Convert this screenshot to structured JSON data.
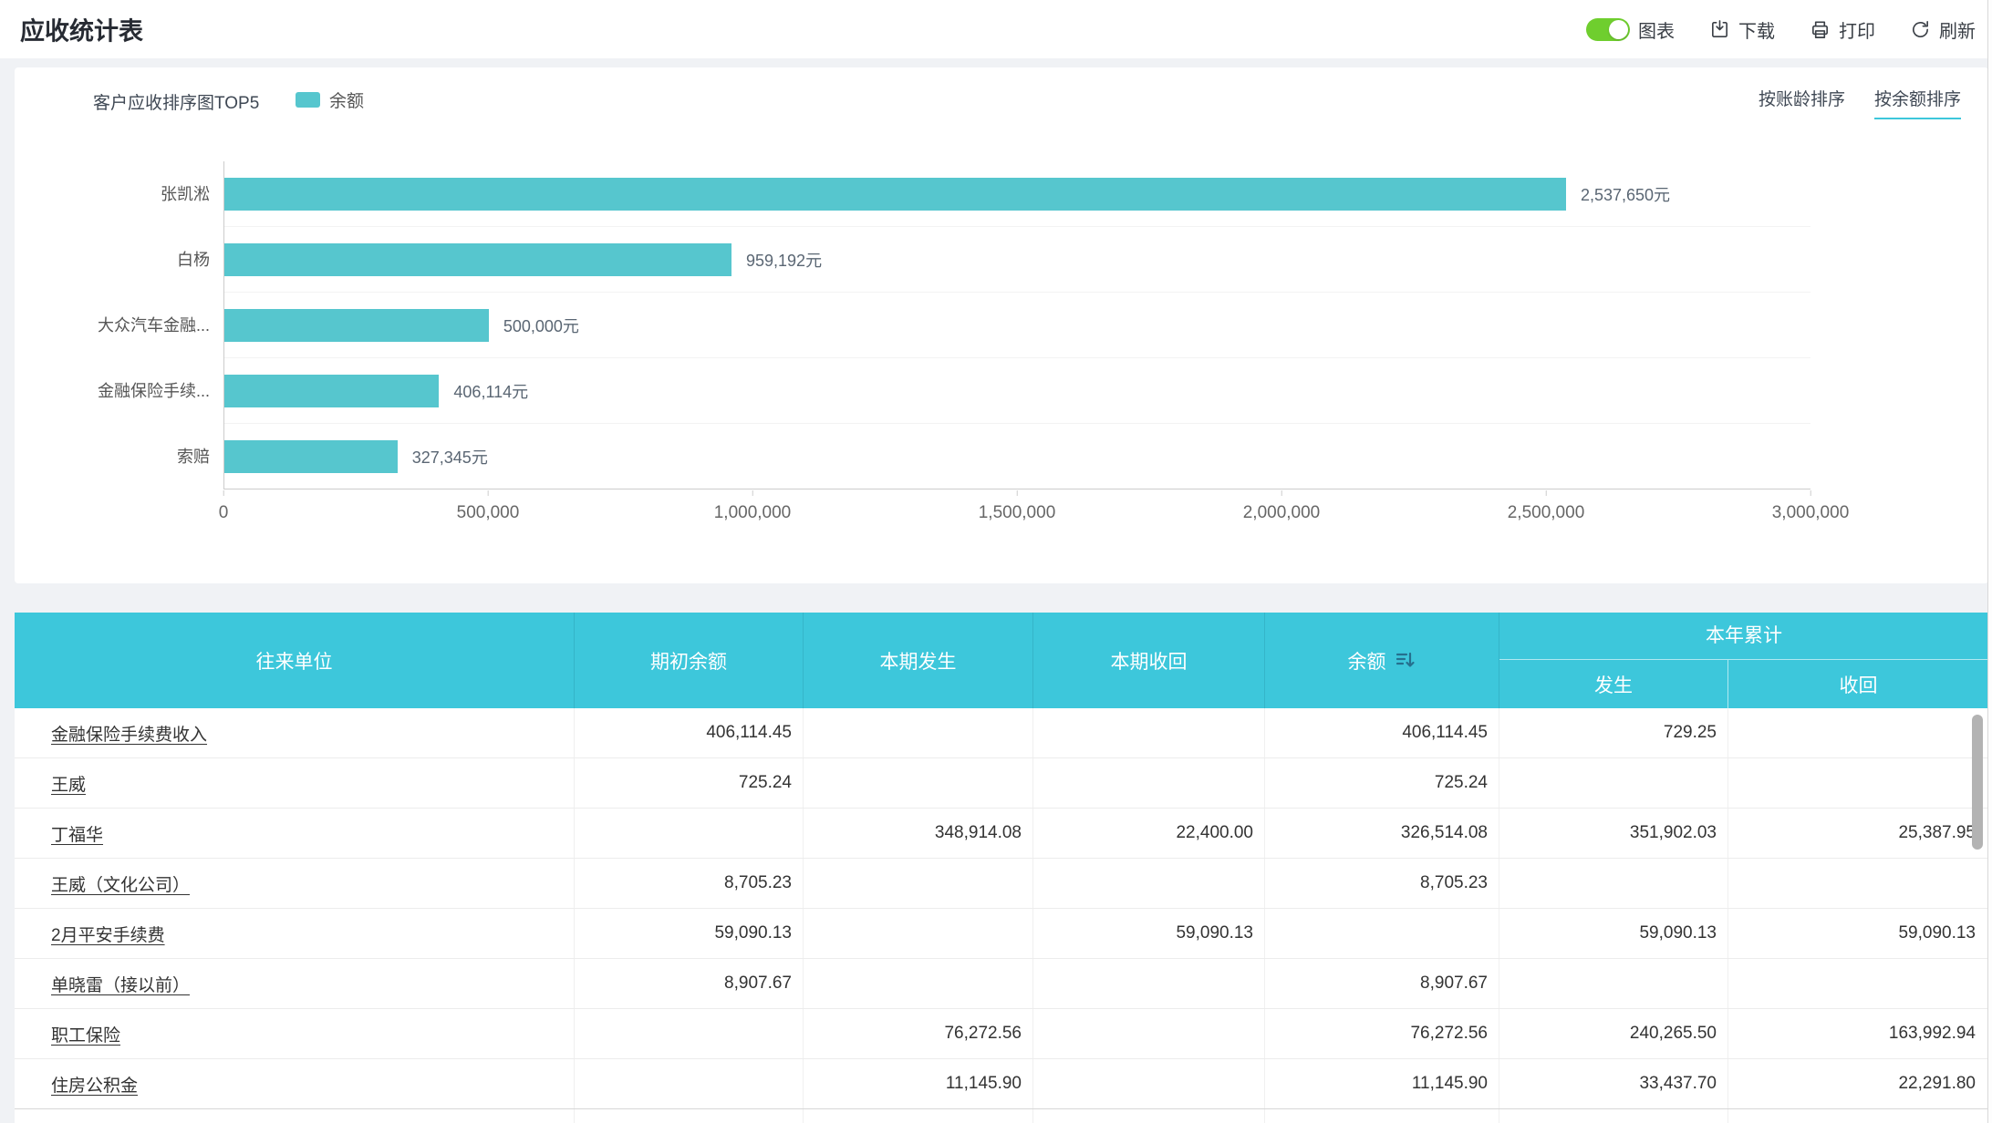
{
  "page_title": "应收统计表",
  "toolbar": {
    "chart_toggle": {
      "label": "图表",
      "state": "on"
    },
    "download": "下载",
    "print": "打印",
    "refresh": "刷新"
  },
  "chart_card": {
    "title": "客户应收排序图TOP5",
    "legend": "余额",
    "sort_tabs": [
      {
        "label": "按账龄排序",
        "active": false
      },
      {
        "label": "按余额排序",
        "active": true
      }
    ]
  },
  "chart_data": {
    "type": "bar",
    "orientation": "horizontal",
    "title": "客户应收排序图TOP5",
    "legend": [
      "余额"
    ],
    "legend_position": "top",
    "categories": [
      "张凯淞",
      "白杨",
      "大众汽车金融...",
      "金融保险手续...",
      "索赔"
    ],
    "values": [
      2537650,
      959192,
      500000,
      406114,
      327345
    ],
    "value_labels": [
      "2,537,650元",
      "959,192元",
      "500,000元",
      "406,114元",
      "327,345元"
    ],
    "xlim": [
      0,
      3000000
    ],
    "x_ticks": [
      0,
      500000,
      1000000,
      1500000,
      2000000,
      2500000,
      3000000
    ],
    "x_tick_labels": [
      "0",
      "500,000",
      "1,000,000",
      "1,500,000",
      "2,000,000",
      "2,500,000",
      "3,000,000"
    ],
    "grid": true,
    "bar_color": "#56c6ce"
  },
  "table": {
    "columns": [
      "往来单位",
      "期初余额",
      "本期发生",
      "本期收回",
      "余额"
    ],
    "group": {
      "label": "本年累计",
      "children": [
        "发生",
        "收回"
      ]
    },
    "sort": {
      "column": "余额",
      "direction": "desc"
    },
    "rows": [
      [
        "金融保险手续费收入",
        "406,114.45",
        "",
        "",
        "406,114.45",
        "729.25",
        ""
      ],
      [
        "王威",
        "725.24",
        "",
        "",
        "725.24",
        "",
        ""
      ],
      [
        "丁福华",
        "",
        "348,914.08",
        "22,400.00",
        "326,514.08",
        "351,902.03",
        "25,387.95"
      ],
      [
        "王威（文化公司）",
        "8,705.23",
        "",
        "",
        "8,705.23",
        "",
        ""
      ],
      [
        "2月平安手续费",
        "59,090.13",
        "",
        "59,090.13",
        "",
        "59,090.13",
        "59,090.13"
      ],
      [
        "单晓雷（接以前）",
        "8,907.67",
        "",
        "",
        "8,907.67",
        "",
        ""
      ],
      [
        "职工保险",
        "",
        "76,272.56",
        "",
        "76,272.56",
        "240,265.50",
        "163,992.94"
      ],
      [
        "住房公积金",
        "",
        "11,145.90",
        "",
        "11,145.90",
        "33,437.70",
        "22,291.80"
      ]
    ]
  },
  "colors": {
    "page_bg": "#f0f2f5",
    "accent_teal": "#3dc7db",
    "bar_teal": "#56c6ce",
    "toggle_green": "#6fce2e",
    "table_header_text": "#ffffff"
  }
}
